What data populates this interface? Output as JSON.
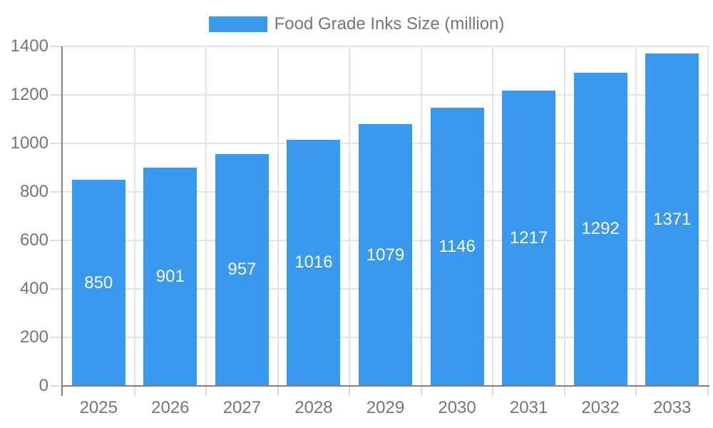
{
  "legend": {
    "label": "Food Grade Inks Size (million)"
  },
  "colors": {
    "bar": "#3999EE",
    "gridline": "#E3E3E3",
    "tick": "#DCDCDC",
    "axis_line": "#808080",
    "axis_text": "#757575",
    "value_label_text": "#FFFFFF",
    "background": "#FFFFFF"
  },
  "chart_data": {
    "type": "bar",
    "title": "Food Grade Inks Size (million)",
    "categories": [
      "2025",
      "2026",
      "2027",
      "2028",
      "2029",
      "2030",
      "2031",
      "2032",
      "2033"
    ],
    "values": [
      850,
      901,
      957,
      1016,
      1079,
      1146,
      1217,
      1292,
      1371
    ],
    "xlabel": "",
    "ylabel": "",
    "ylim": [
      0,
      1400
    ],
    "yticks": [
      0,
      200,
      400,
      600,
      800,
      1000,
      1200,
      1400
    ],
    "grid": true,
    "legend_position": "top",
    "value_labels": "inside-center"
  }
}
